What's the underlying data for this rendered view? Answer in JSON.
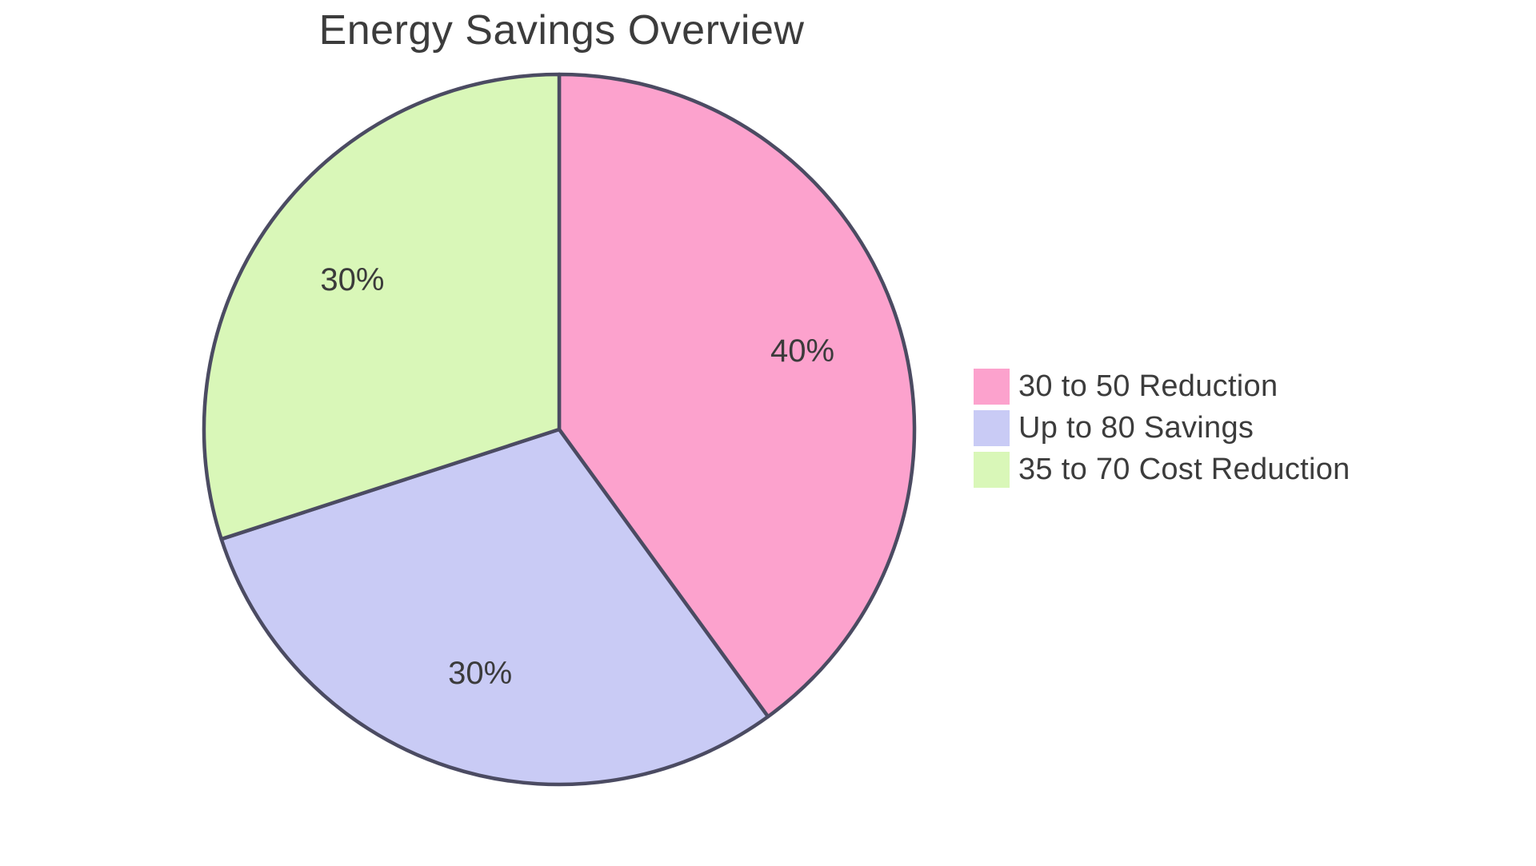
{
  "chart_data": {
    "type": "pie",
    "title": "Energy Savings Overview",
    "categories": [
      "30 to 50 Reduction",
      "Up to 80 Savings",
      "35 to 70 Cost Reduction"
    ],
    "values": [
      40,
      30,
      30
    ],
    "slice_labels": [
      "40%",
      "30%",
      "30%"
    ],
    "colors": [
      "#FCA2CD",
      "#C9CBF5",
      "#D9F7B8"
    ],
    "stroke_color": "#4B4B62",
    "label_color": "#3B3B3B",
    "title_color": "#3C3C3C",
    "background": "#FFFFFF",
    "legend_position": "right",
    "start_angle": "top",
    "direction": "clockwise",
    "legend": {
      "items": [
        "30 to 50 Reduction",
        "Up to 80 Savings",
        "35 to 70 Cost Reduction"
      ]
    }
  }
}
